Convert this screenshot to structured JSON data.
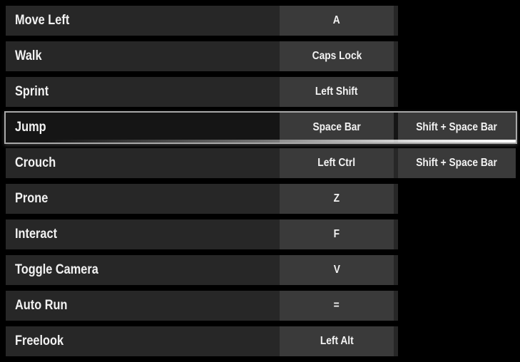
{
  "screen": {
    "name": "Keybindings Menu"
  },
  "colors": {
    "page_bg": "#000000",
    "row_bg": "#272727",
    "row_selected_bg": "#151515",
    "key_bg": "#3a3a3a",
    "empty_slot_bg": "#000000",
    "text": "#f2f2f2",
    "selected_border": "#a8a8a8"
  },
  "keybindings": {
    "rows": [
      {
        "action": "Move Left",
        "primary": "A",
        "secondary": "",
        "selected": false
      },
      {
        "action": "Walk",
        "primary": "Caps Lock",
        "secondary": "",
        "selected": false
      },
      {
        "action": "Sprint",
        "primary": "Left Shift",
        "secondary": "",
        "selected": false
      },
      {
        "action": "Jump",
        "primary": "Space Bar",
        "secondary": "Shift + Space Bar",
        "selected": true
      },
      {
        "action": "Crouch",
        "primary": "Left Ctrl",
        "secondary": "Shift + Space Bar",
        "selected": false
      },
      {
        "action": "Prone",
        "primary": "Z",
        "secondary": "",
        "selected": false
      },
      {
        "action": "Interact",
        "primary": "F",
        "secondary": "",
        "selected": false
      },
      {
        "action": "Toggle Camera",
        "primary": "V",
        "secondary": "",
        "selected": false
      },
      {
        "action": "Auto Run",
        "primary": "=",
        "secondary": "",
        "selected": false
      },
      {
        "action": "Freelook",
        "primary": "Left Alt",
        "secondary": "",
        "selected": false
      }
    ]
  }
}
